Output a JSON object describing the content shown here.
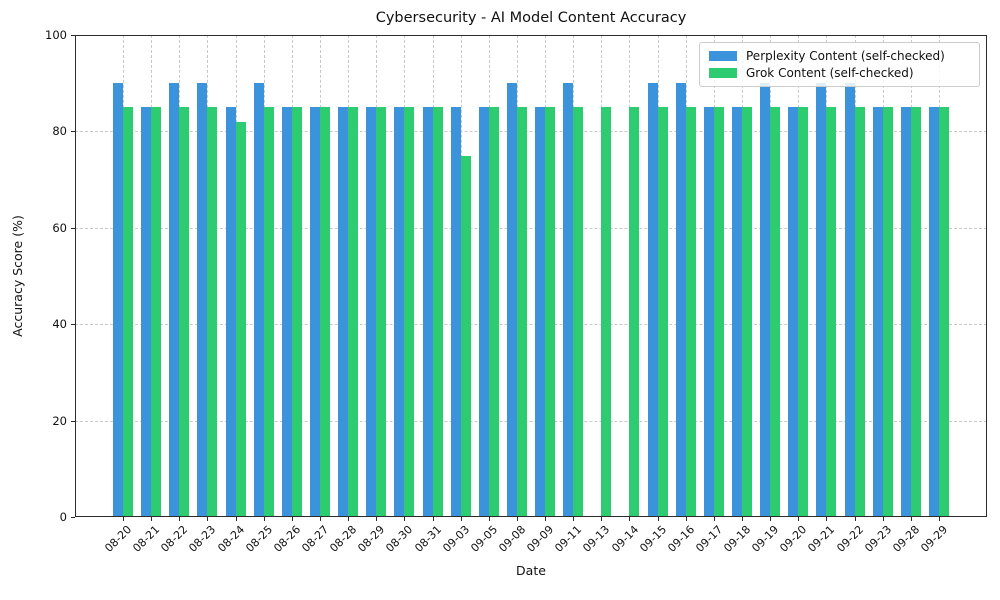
{
  "chart_data": {
    "type": "bar",
    "title": "Cybersecurity - AI Model Content Accuracy",
    "xlabel": "Date",
    "ylabel": "Accuracy Score (%)",
    "ylim": [
      0,
      100
    ],
    "yticks": [
      0,
      20,
      40,
      60,
      80,
      100
    ],
    "grid": "dashed-both-axes",
    "legend_position": "upper-right",
    "background_color": "#ffffff",
    "categories": [
      "08-20",
      "08-21",
      "08-22",
      "08-23",
      "08-24",
      "08-25",
      "08-26",
      "08-27",
      "08-28",
      "08-29",
      "08-30",
      "08-31",
      "09-03",
      "09-05",
      "09-08",
      "09-09",
      "09-11",
      "09-13",
      "09-14",
      "09-15",
      "09-16",
      "09-17",
      "09-18",
      "09-19",
      "09-20",
      "09-21",
      "09-22",
      "09-23",
      "09-28",
      "09-29"
    ],
    "series": [
      {
        "name": "Perplexity Content (self-checked)",
        "color": "#3a93db",
        "values": [
          90,
          85,
          90,
          90,
          85,
          90,
          85,
          85,
          85,
          85,
          85,
          85,
          85,
          85,
          90,
          85,
          90,
          null,
          null,
          90,
          90,
          85,
          85,
          90,
          85,
          90,
          90,
          85,
          85,
          85
        ]
      },
      {
        "name": "Grok Content (self-checked)",
        "color": "#2ecc71",
        "values": [
          85,
          85,
          85,
          85,
          82,
          85,
          85,
          85,
          85,
          85,
          85,
          85,
          75,
          85,
          85,
          85,
          85,
          85,
          85,
          85,
          85,
          85,
          85,
          85,
          85,
          85,
          85,
          85,
          85,
          85
        ]
      }
    ]
  }
}
